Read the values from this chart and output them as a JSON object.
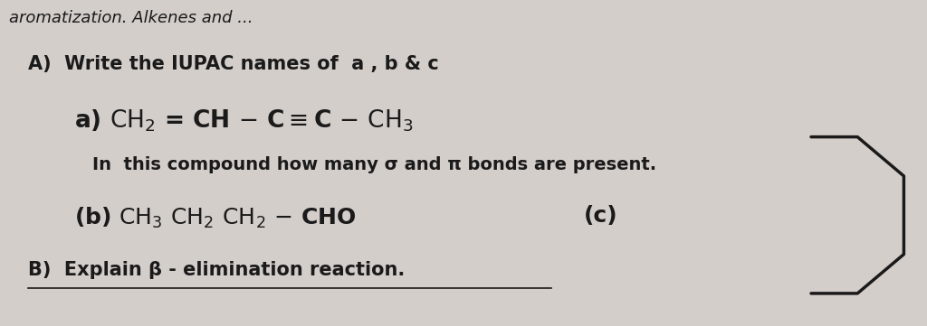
{
  "bg_color": "#d4ceca",
  "top_text": "aromatization. Alkenes and ...",
  "line_A": "A)  Write the IUPAC names of  a , b & c",
  "line_sub": "In  this compound how many σ and π bonds are present.",
  "line_c": "(c)",
  "line_B": "B)  Explain β - elimination reaction.",
  "font_size_top": 13,
  "font_size_A": 15,
  "font_size_a": 19,
  "font_size_sub": 14,
  "font_size_b": 18,
  "font_size_B": 15,
  "text_color": "#1a1a1a"
}
